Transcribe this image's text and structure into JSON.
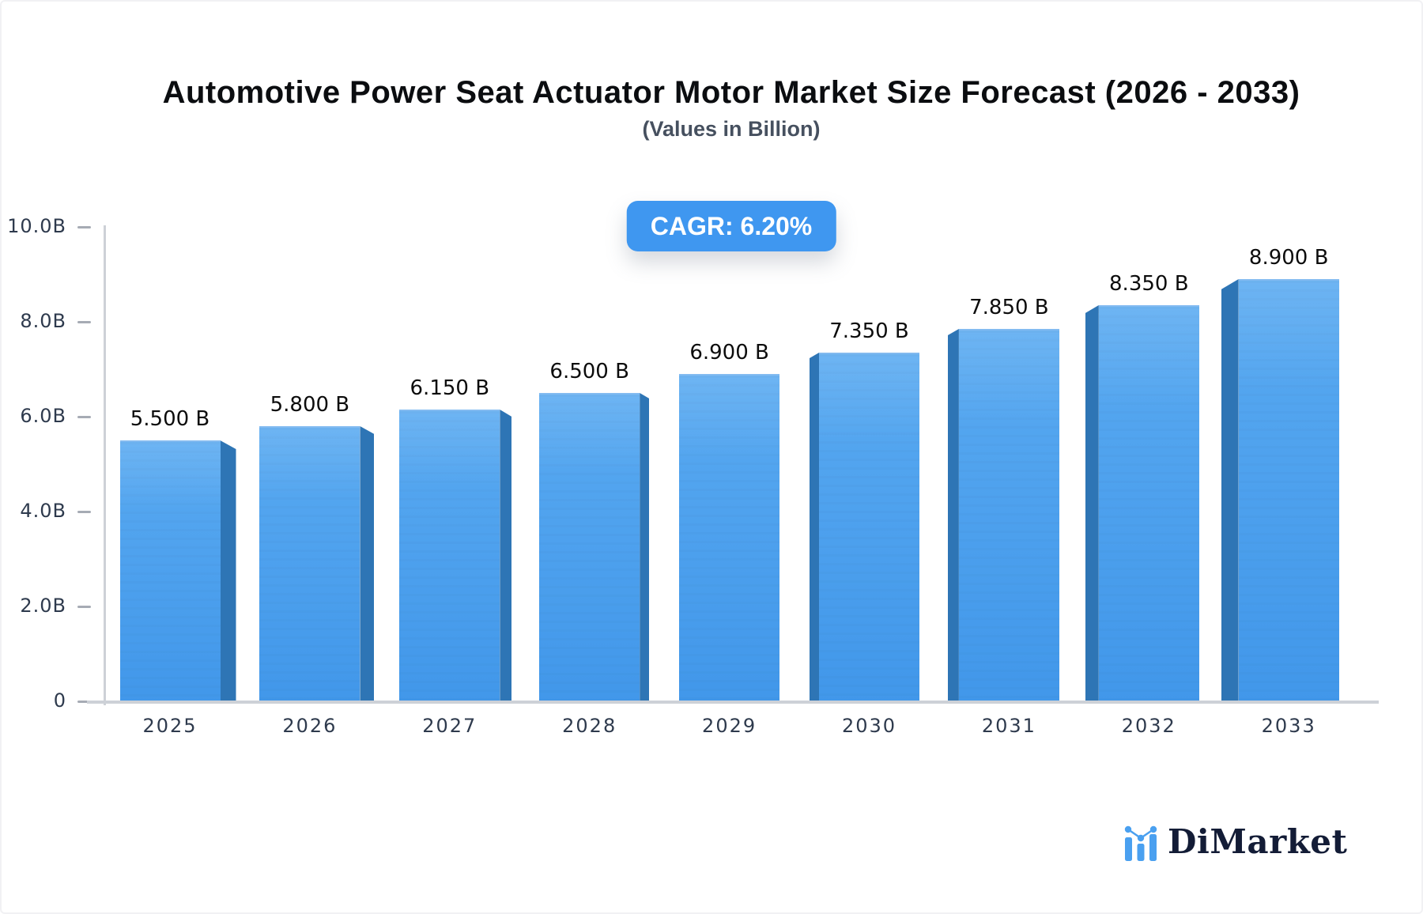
{
  "chart_data": {
    "type": "bar",
    "title": "Automotive Power Seat Actuator Motor Market Size Forecast (2026 - 2033)",
    "subtitle": "(Values in Billion)",
    "cagr_badge": "CAGR: 6.20%",
    "categories": [
      "2025",
      "2026",
      "2027",
      "2028",
      "2029",
      "2030",
      "2031",
      "2032",
      "2033"
    ],
    "values": [
      5.5,
      5.8,
      6.15,
      6.5,
      6.9,
      7.35,
      7.85,
      8.35,
      8.9
    ],
    "value_labels": [
      "5.500 B",
      "5.800 B",
      "6.150 B",
      "6.500 B",
      "6.900 B",
      "7.350 B",
      "7.850 B",
      "8.350 B",
      "8.900 B"
    ],
    "yticks": [
      {
        "label": "10.0B",
        "value": 10
      },
      {
        "label": "8.0B",
        "value": 8
      },
      {
        "label": "6.0B",
        "value": 6
      },
      {
        "label": "4.0B",
        "value": 4
      },
      {
        "label": "2.0B",
        "value": 2
      },
      {
        "label": "0",
        "value": 0
      }
    ],
    "ylim": [
      0,
      10
    ],
    "xlabel": "",
    "ylabel": "",
    "grid": false,
    "legend": null,
    "colors": {
      "bar_face_top": "#59AAF1",
      "bar_face_bottom": "#4197EA",
      "bar_side": "#2E75B5",
      "badge_bg": "#3F97F0",
      "badge_text": "#FFFFFF",
      "axis_line": "#CDD1D7",
      "tick_dash": "#A6ABB4",
      "axis_label_color": "#2E3A4D",
      "value_label_color": "#0C0C0C",
      "title_color": "#0B0D10",
      "subtitle_color": "#46505F"
    }
  },
  "logo": {
    "brand": "DiMarket",
    "icon": "mini-bar-line-chart-icon",
    "text_color": "#131C36",
    "accent_color": "#4AA0F0"
  }
}
